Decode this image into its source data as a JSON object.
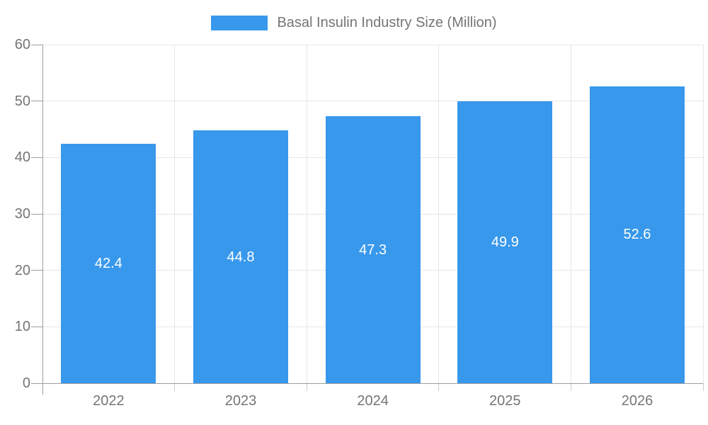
{
  "chart_data": {
    "type": "bar",
    "title": "",
    "legend_label": "Basal Insulin Industry Size (Million)",
    "legend_position": "top",
    "categories": [
      "2022",
      "2023",
      "2024",
      "2025",
      "2026"
    ],
    "values": [
      42.4,
      44.8,
      47.3,
      49.9,
      52.6
    ],
    "value_labels": [
      "42.4",
      "44.8",
      "47.3",
      "49.9",
      "52.6"
    ],
    "xlabel": "",
    "ylabel": "",
    "ylim": [
      0,
      60
    ],
    "yticks": [
      0,
      10,
      20,
      30,
      40,
      50,
      60
    ],
    "grid": true,
    "colors": {
      "bar": "#3898ec",
      "axis_line": "#9e9e9e",
      "grid_line": "#e6e6e6",
      "boundary_tick": "#cccccc",
      "tick_label": "#757575",
      "legend_text": "#757575",
      "value_label": "#ffffff",
      "background": "#ffffff"
    }
  }
}
